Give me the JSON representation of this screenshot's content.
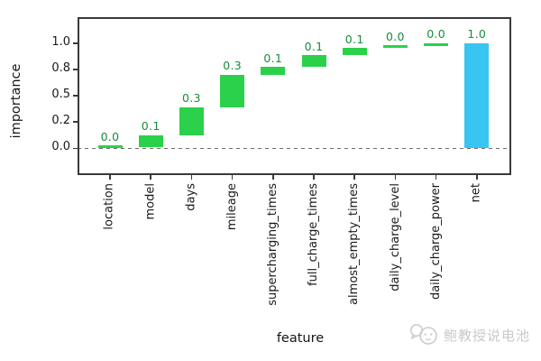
{
  "watermark": {
    "text": "鲍教授说电池",
    "icon": "speech-bubbles-icon",
    "color": "#c9c9c9"
  },
  "chart_data": {
    "type": "bar",
    "subtype": "waterfall",
    "title": "",
    "xlabel": "feature",
    "ylabel": "importance",
    "ylim": [
      -0.25,
      1.25
    ],
    "grid": false,
    "legend": null,
    "zero_line": {
      "style": "dashed",
      "color": "#6e6e6e",
      "y": 0
    },
    "yticks": {
      "values": [
        0,
        0.25,
        0.5,
        0.75,
        1.0
      ],
      "labels": [
        "0.0",
        "0.2",
        "0.5",
        "0.8",
        "1.0"
      ]
    },
    "categories": [
      "location",
      "model",
      "days",
      "mileage",
      "supercharging_times",
      "full_charge_times",
      "almost_empty_times",
      "daily_charge_level",
      "daily_charge_power",
      "net"
    ],
    "values": [
      0.0,
      0.1,
      0.3,
      0.3,
      0.1,
      0.1,
      0.1,
      0.0,
      0.0,
      1.0
    ],
    "segments": [
      {
        "category": "location",
        "start": 0.0,
        "end": 0.015,
        "label": "0.0",
        "kind": "increment"
      },
      {
        "category": "model",
        "start": 0.015,
        "end": 0.125,
        "label": "0.1",
        "kind": "increment"
      },
      {
        "category": "days",
        "start": 0.125,
        "end": 0.39,
        "label": "0.3",
        "kind": "increment"
      },
      {
        "category": "mileage",
        "start": 0.39,
        "end": 0.7,
        "label": "0.3",
        "kind": "increment"
      },
      {
        "category": "supercharging_times",
        "start": 0.7,
        "end": 0.775,
        "label": "0.1",
        "kind": "increment"
      },
      {
        "category": "full_charge_times",
        "start": 0.775,
        "end": 0.885,
        "label": "0.1",
        "kind": "increment"
      },
      {
        "category": "almost_empty_times",
        "start": 0.885,
        "end": 0.955,
        "label": "0.1",
        "kind": "increment"
      },
      {
        "category": "daily_charge_level",
        "start": 0.955,
        "end": 0.975,
        "label": "0.0",
        "kind": "increment"
      },
      {
        "category": "daily_charge_power",
        "start": 0.975,
        "end": 1.0,
        "label": "0.0",
        "kind": "increment"
      },
      {
        "category": "net",
        "start": 0.0,
        "end": 1.0,
        "label": "1.0",
        "kind": "net"
      }
    ],
    "colors": {
      "increment": "#2bd14a",
      "net": "#38c5f1",
      "value_label": "#178c3a",
      "axis": "#3a3a3a",
      "tick_label": "#1a1a1a",
      "background": "#ffffff"
    }
  }
}
